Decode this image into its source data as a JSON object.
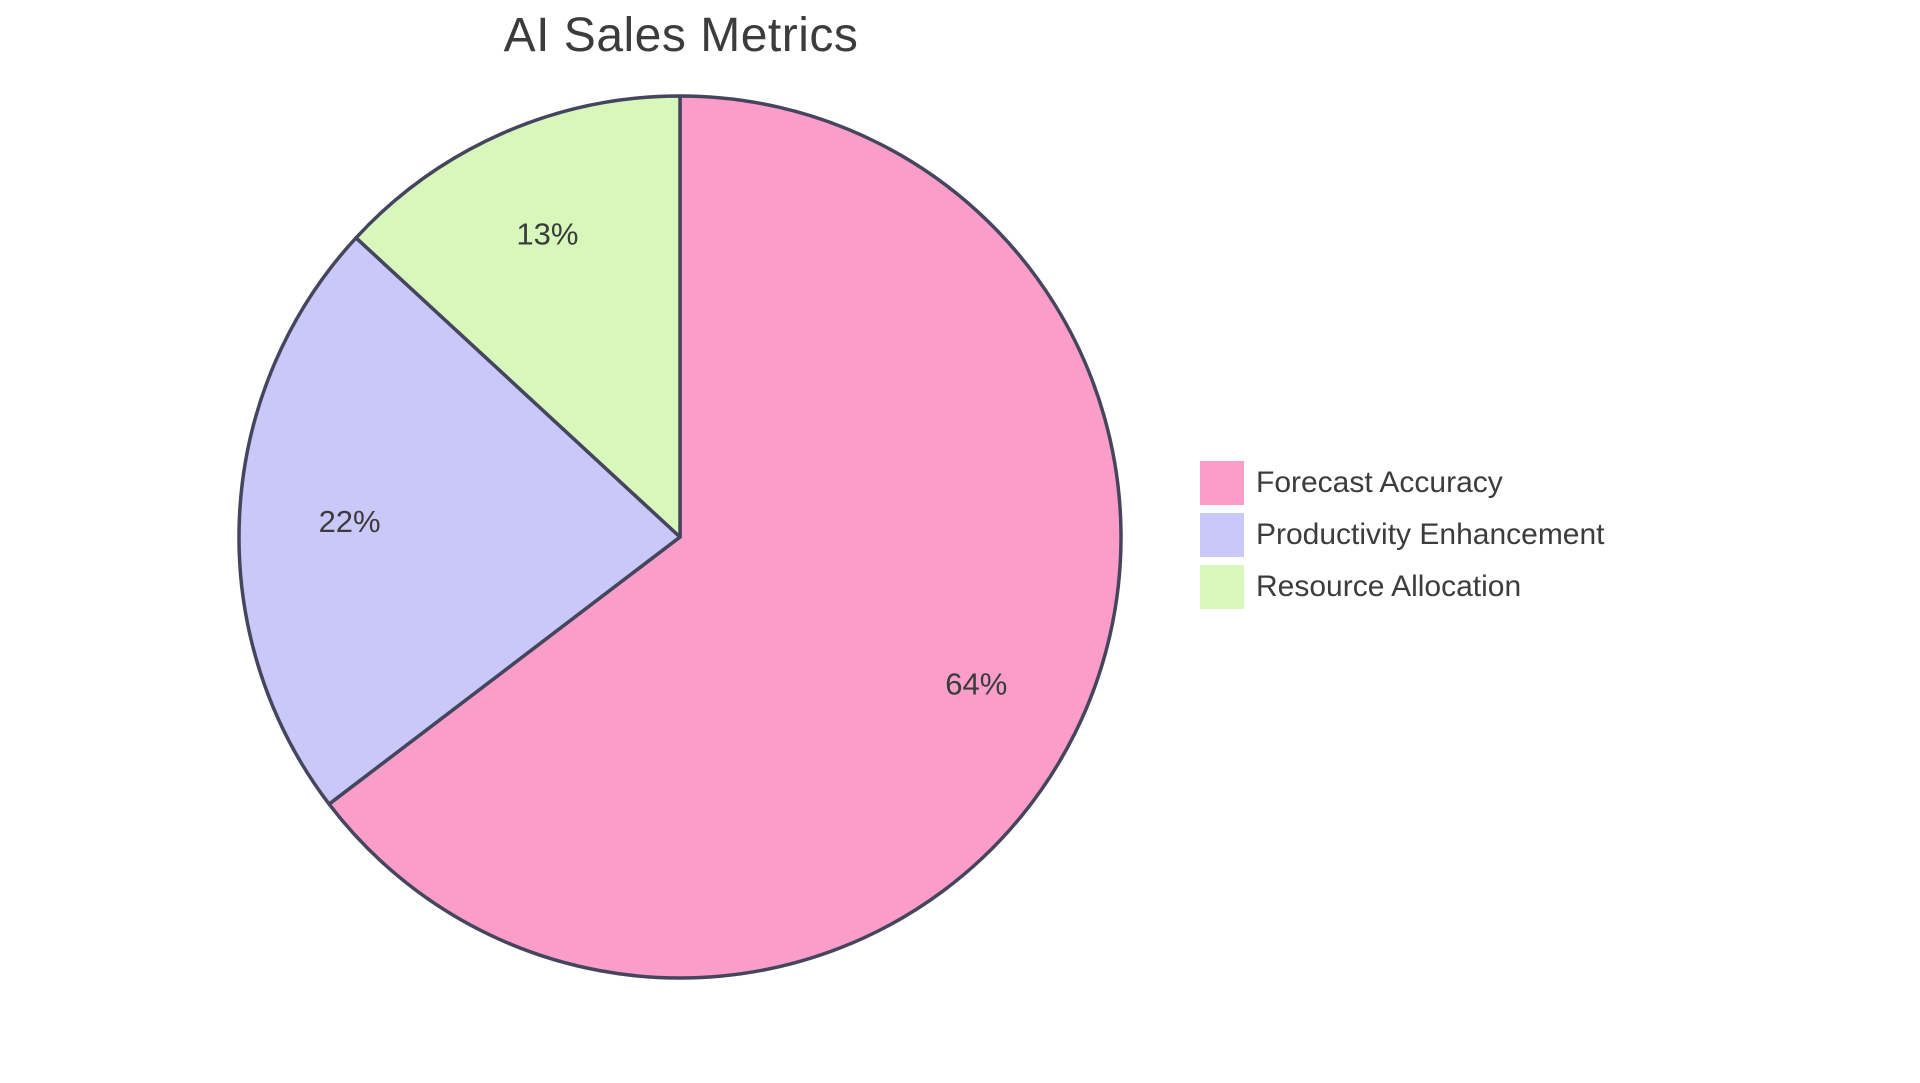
{
  "page": {
    "background": "#FFFFFF"
  },
  "chart_data": {
    "type": "pie",
    "title": "AI Sales Metrics",
    "categories": [
      "Forecast Accuracy",
      "Productivity Enhancement",
      "Resource Allocation"
    ],
    "values": [
      64,
      22,
      13
    ],
    "slice_labels": [
      "64%",
      "22%",
      "13%"
    ],
    "colors": [
      "#FA9EC9",
      "#C9C8F8",
      "#D8F7BB"
    ],
    "border_color": "#45455E",
    "label_color": "#3C3C3C",
    "title_color": "#3C3C3C",
    "start_angle": "12-oclock",
    "direction": "clockwise",
    "legend_position": "right",
    "grid": "off"
  }
}
